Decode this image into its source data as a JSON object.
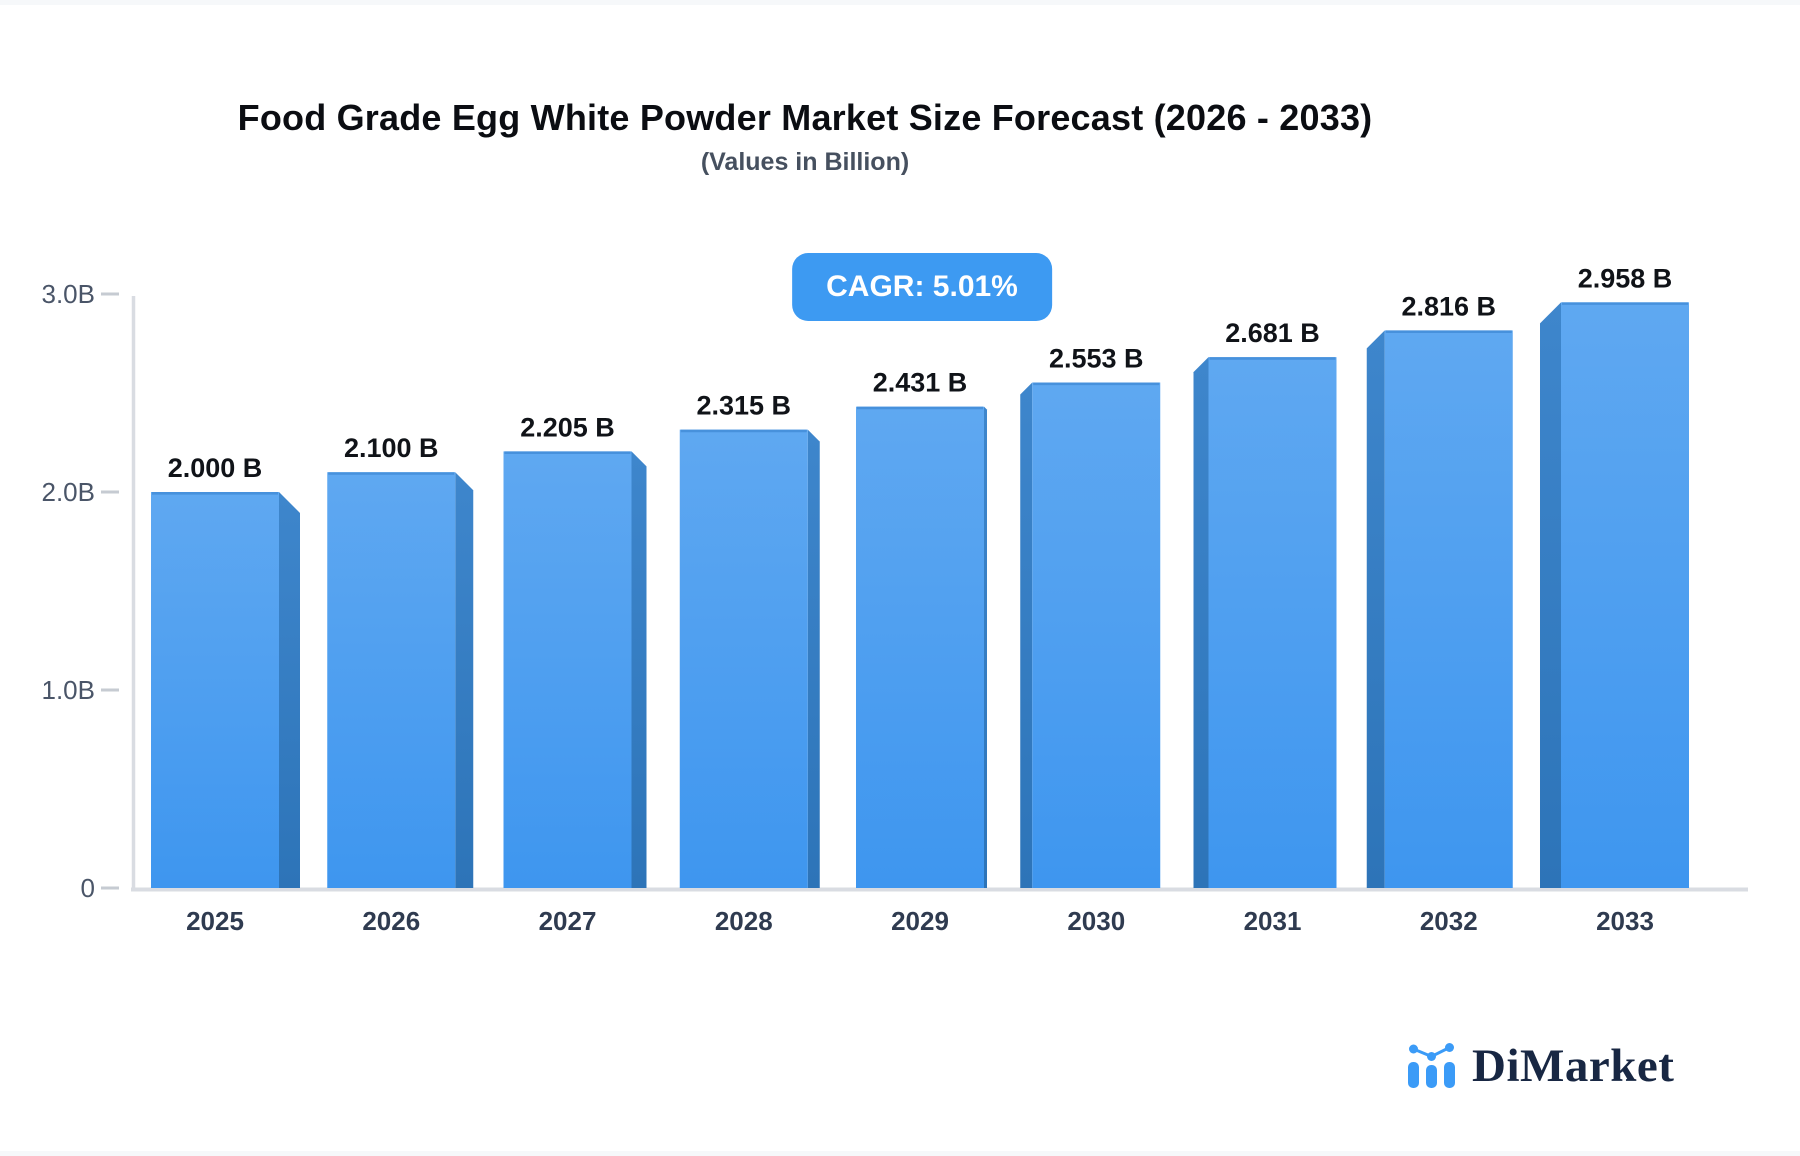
{
  "header": {
    "title": "Food Grade Egg White Powder Market Size Forecast (2026 - 2033)",
    "subtitle": "(Values in Billion)"
  },
  "badge": {
    "label": "CAGR: 5.01%"
  },
  "chart_data": {
    "type": "bar",
    "title": "Food Grade Egg White Powder Market Size Forecast (2026 - 2033)",
    "subtitle": "(Values in Billion)",
    "categories": [
      "2025",
      "2026",
      "2027",
      "2028",
      "2029",
      "2030",
      "2031",
      "2032",
      "2033"
    ],
    "values": [
      2.0,
      2.1,
      2.205,
      2.315,
      2.431,
      2.553,
      2.681,
      2.816,
      2.958
    ],
    "value_labels": [
      "2.000 B",
      "2.100 B",
      "2.205 B",
      "2.315 B",
      "2.431 B",
      "2.553 B",
      "2.681 B",
      "2.816 B",
      "2.958 B"
    ],
    "unit": "Billion",
    "ylim": [
      0,
      3.0
    ],
    "yticks": [
      {
        "v": 0,
        "label": "0"
      },
      {
        "v": 1,
        "label": "1.0B"
      },
      {
        "v": 2,
        "label": "2.0B"
      },
      {
        "v": 3,
        "label": "3.0B"
      }
    ],
    "xlabel": "",
    "ylabel": "",
    "grid": false,
    "legend": "none",
    "annotation": "CAGR: 5.01%"
  },
  "brand": {
    "name": "DiMarket"
  },
  "colors": {
    "title": "#0b0d12",
    "subtitle": "#46505f",
    "badge_bg": "#3d9af2",
    "badge_text": "#ffffff",
    "bar_front_top": "#5fa8f1",
    "bar_front_bottom": "#3e96ef",
    "bar_side_top": "#3e86cc",
    "bar_side_bottom": "#2d74b8",
    "bar_top_edge": "#3f8ad6",
    "axis": "#d9dce2",
    "y_tick_text": "#4a5568",
    "x_tick_text": "#2f3b50",
    "value_label": "#101318",
    "brand_blue": "#3b9bf7",
    "brand_navy": "#182743"
  }
}
